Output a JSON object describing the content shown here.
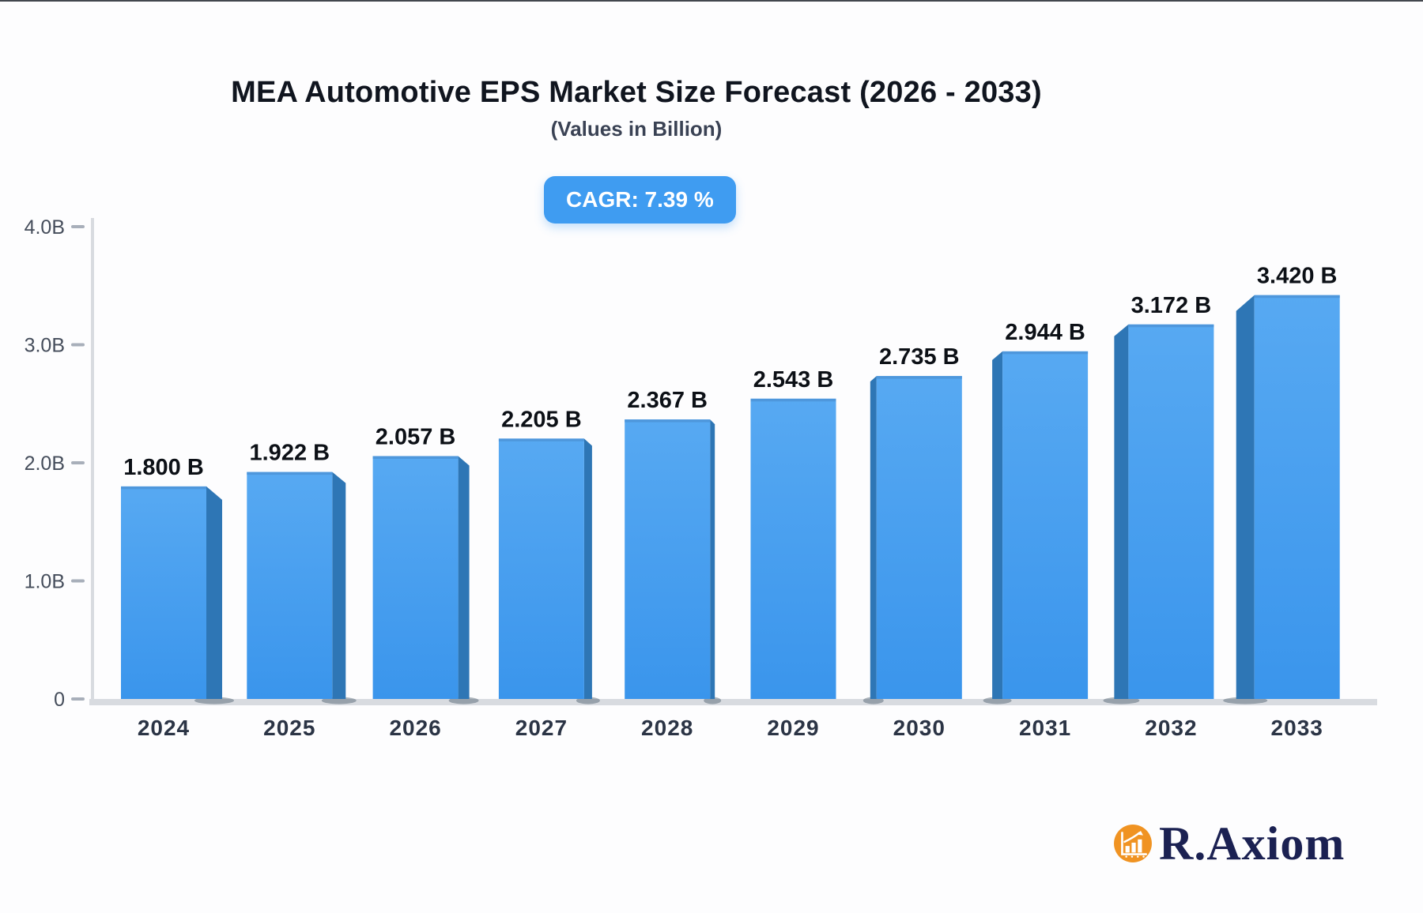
{
  "header": {
    "title": "MEA Automotive EPS Market Size Forecast (2026 - 2033)",
    "subtitle": "(Values in Billion)"
  },
  "badge": {
    "label": "CAGR: 7.39 %",
    "bg_color": "#3f9cf1",
    "text_color": "#ffffff"
  },
  "chart_data": {
    "type": "bar",
    "title": "MEA Automotive EPS Market Size Forecast (2026 - 2033)",
    "subtitle": "(Values in Billion)",
    "unit": "Billion",
    "cagr": "7.39 %",
    "categories": [
      "2024",
      "2025",
      "2026",
      "2027",
      "2028",
      "2029",
      "2030",
      "2031",
      "2032",
      "2033"
    ],
    "values": [
      1.8,
      1.922,
      2.057,
      2.205,
      2.367,
      2.543,
      2.735,
      2.944,
      3.172,
      3.42
    ],
    "value_labels": [
      "1.800 B",
      "1.922 B",
      "2.057 B",
      "2.205 B",
      "2.367 B",
      "2.543 B",
      "2.735 B",
      "2.944 B",
      "3.172 B",
      "3.420 B"
    ],
    "ylim": [
      0,
      4.0
    ],
    "ytick_values": [
      4,
      3,
      2,
      1,
      0
    ],
    "ytick_labels": [
      "4.0B",
      "3.0B",
      "2.0B",
      "1.0B",
      "0"
    ],
    "grid": "off",
    "legend": "none",
    "bar_color_top": "#57a9f2",
    "bar_color_bottom": "#3a95ec",
    "bar_top_edge_color": "#4e97dc",
    "bar_side_color": "#2e76b5",
    "axis_color": "#d8dbe0",
    "tick_color": "#a8afba",
    "ytick_text_color": "#454d5b",
    "xtick_text_color": "#2b3445",
    "value_text_color": "#0c1016"
  },
  "logo": {
    "text": "R.Axiom",
    "icon": "growth-chart-icon",
    "icon_bg": "#f09322",
    "text_color": "#1b2152"
  }
}
